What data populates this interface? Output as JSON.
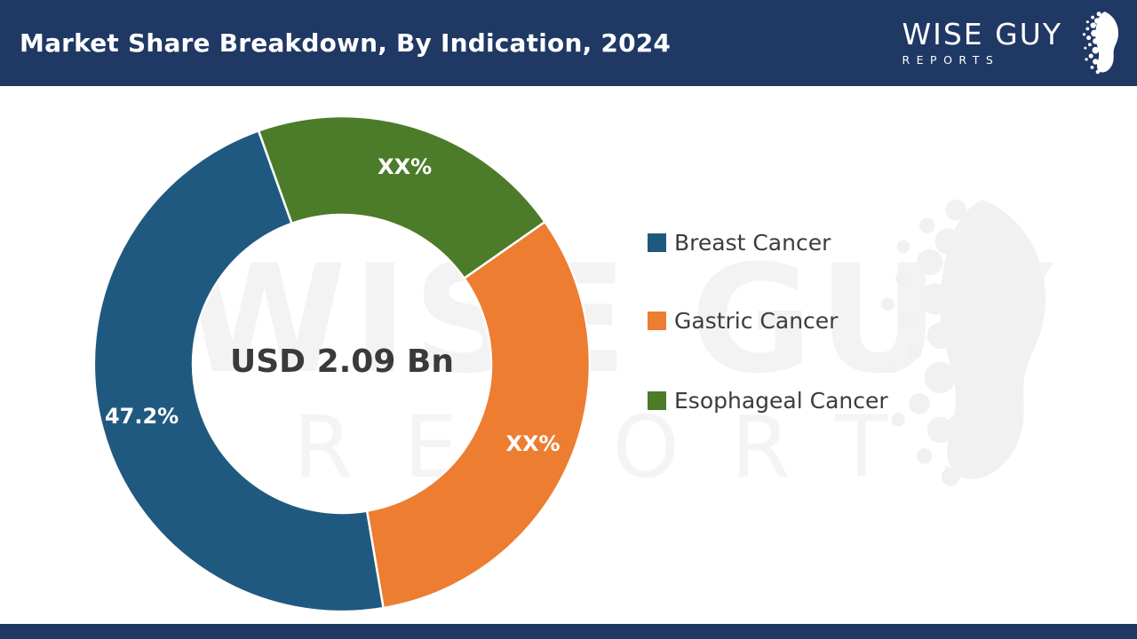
{
  "header": {
    "title": "Market Share Breakdown, By Indication, 2024",
    "bg_color": "#1F3864",
    "logo": {
      "line1": "WISE GUY",
      "line2": "REPORTS"
    }
  },
  "watermark": {
    "line1": "WISE GUY",
    "line2": "REPORTS"
  },
  "chart_data": {
    "type": "donut",
    "title": "Market Share Breakdown, By Indication, 2024",
    "center_label": "USD 2.09 Bn",
    "direction": "clockwise",
    "start_angle_deg": -19.7,
    "inner_radius_ratio": 0.6,
    "segments": [
      {
        "name": "Esophageal Cancer",
        "displayed_label": "XX%",
        "value_pct_est": 20.75,
        "color": "#4C7B2A"
      },
      {
        "name": "Gastric Cancer",
        "displayed_label": "XX%",
        "value_pct_est": 32.05,
        "color": "#ED7D31"
      },
      {
        "name": "Breast Cancer",
        "displayed_label": "47.2%",
        "value_pct_est": 47.2,
        "color": "#205980"
      }
    ],
    "legend_position": "right"
  },
  "legend": {
    "items": [
      {
        "label": "Breast Cancer",
        "color": "#205980"
      },
      {
        "label": "Gastric Cancer",
        "color": "#ED7D31"
      },
      {
        "label": "Esophageal Cancer",
        "color": "#4C7B2A"
      }
    ]
  },
  "footer": {
    "bg_color": "#1F3864"
  }
}
